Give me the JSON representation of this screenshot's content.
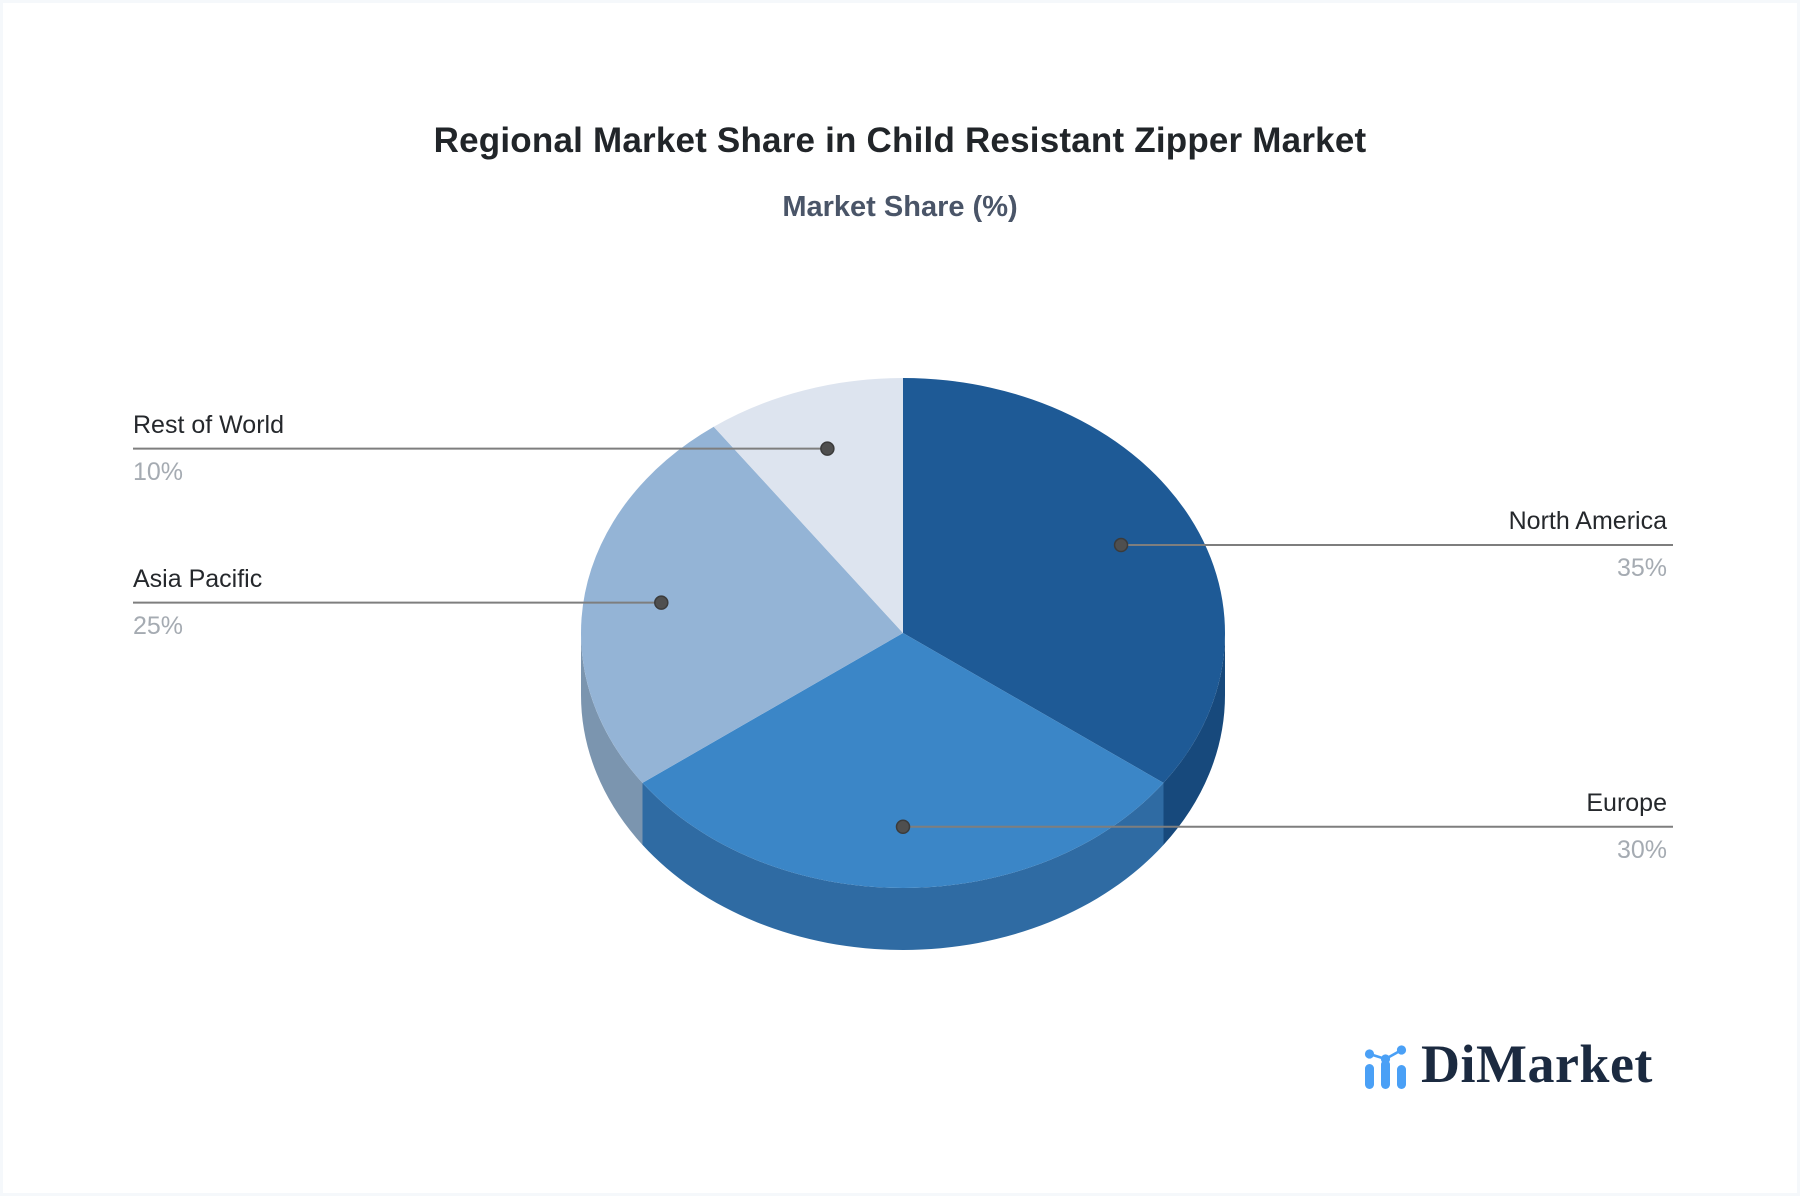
{
  "chart_data": {
    "type": "pie",
    "effect": "3d",
    "title": "Regional Market Share in Child Resistant Zipper Market",
    "subtitle": "Market Share (%)",
    "unit": "%",
    "labels": [
      "North America",
      "Europe",
      "Asia Pacific",
      "Rest of World"
    ],
    "values": [
      35,
      30,
      25,
      10
    ],
    "value_labels": [
      "35%",
      "30%",
      "25%",
      "10%"
    ],
    "colors": [
      "#1E5A96",
      "#3B86C7",
      "#94B4D6",
      "#DDE4EF"
    ],
    "side_colors": [
      "#17497C",
      "#2F6BA3",
      "#7B95AF",
      "#C3CEDD"
    ],
    "callout_sides": [
      "right",
      "right",
      "left",
      "left"
    ],
    "start_angle_deg": 0,
    "direction": "clockwise",
    "legend": "none",
    "label_color": "#25282C",
    "value_color": "#A5ABB2",
    "leader_line_color": "#7E7E7E",
    "anchor_dot_color": "#4F4F4F"
  },
  "branding": {
    "logo_text": "DiMarket",
    "logo_icon": "bar-line-chart-icon",
    "icon_color": "#4AA0F6",
    "text_color": "#1B2A40"
  }
}
